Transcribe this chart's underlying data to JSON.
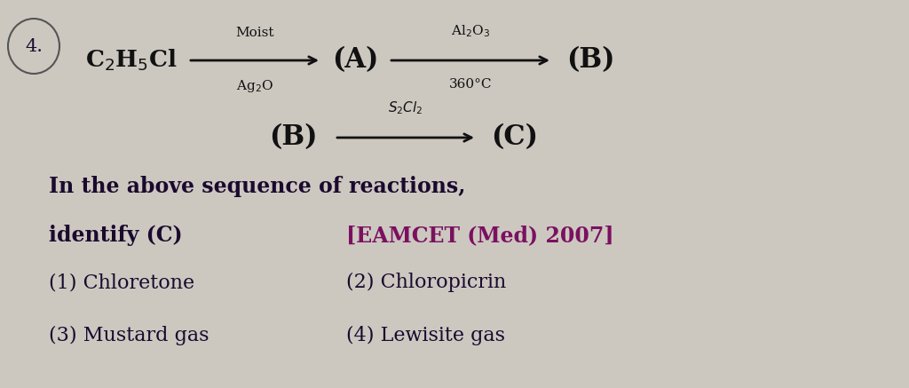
{
  "background_color": "#ccc8c0",
  "question_number": "4.",
  "reaction_line1": {
    "reactant": "C$_2$H$_5$Cl",
    "arrow1_top": "Moist",
    "arrow1_bottom": "Ag$_2$O",
    "product1": "(A)",
    "arrow2_top": "Al$_2$O$_3$",
    "arrow2_bottom": "360°C",
    "product2": "(B)"
  },
  "reaction_line2": {
    "reactant": "(B)",
    "arrow_label": "$S_2Cl_2$",
    "product": "(C)"
  },
  "text_line1": "In the above sequence of reactions,",
  "text_line2": "identify (C)",
  "eamcet_text": "[EAMCET (Med) 2007]",
  "options": [
    "(1) Chloretone",
    "(2) Chloropicrin",
    "(3) Mustard gas",
    "(4) Lewisite gas"
  ],
  "main_text_color": "#1a0a2e",
  "eamcet_color": "#7B1060",
  "reaction_color": "#111111",
  "option_color": "#1a0a2e",
  "circle_edge": "#555555"
}
